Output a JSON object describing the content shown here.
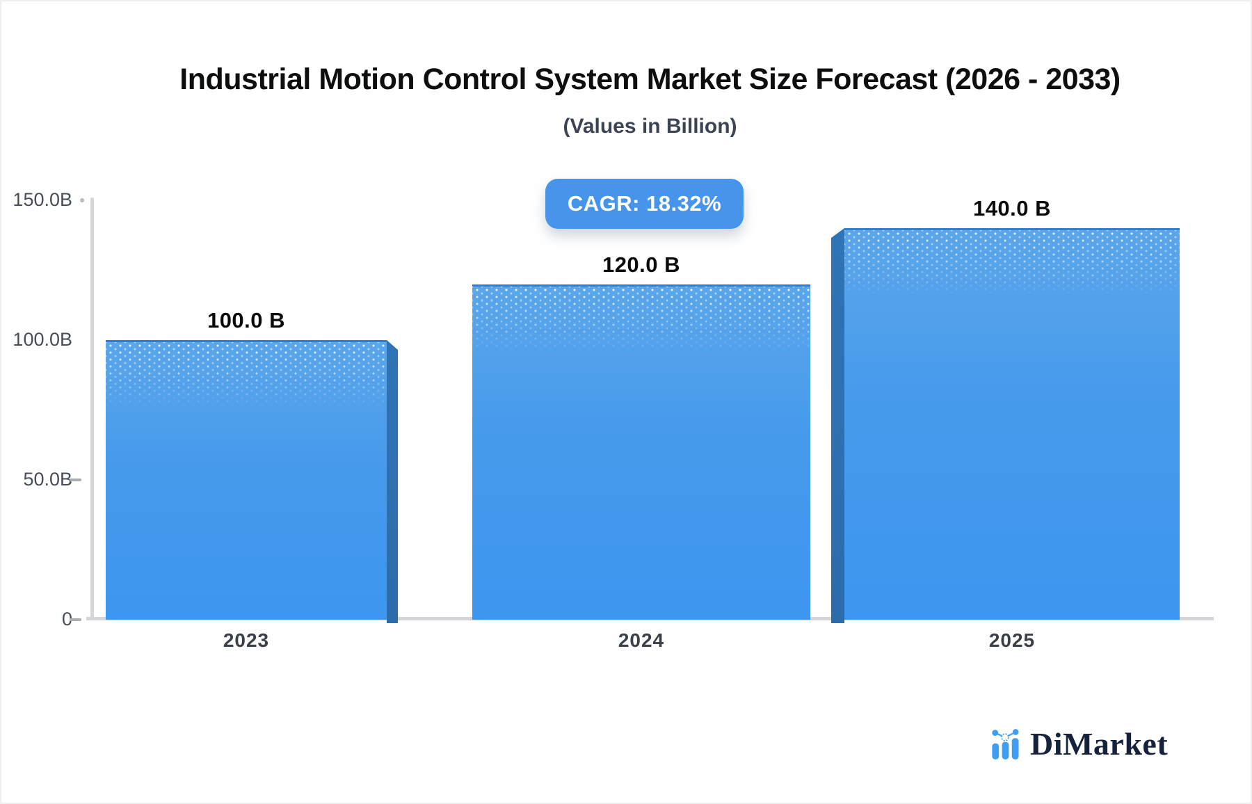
{
  "header": {
    "title": "Industrial Motion Control System Market Size Forecast (2026 - 2033)",
    "subtitle": "(Values in Billion)",
    "cagr_label": "CAGR: 18.32%"
  },
  "branding": {
    "name": "DiMarket",
    "icon": "bar-line-chart-logo-icon",
    "text_color": "#16213c",
    "icon_color": "#3f9df3"
  },
  "colors": {
    "bar_top": "#5ba6ea",
    "bar_bottom": "#3d96ef",
    "bar_side_3d": "#2e70b2",
    "badge_blue": "#4795eb",
    "axis_gray": "#d4d5d9",
    "label_dark": "#394048"
  },
  "chart_data": {
    "type": "bar",
    "categories": [
      "2023",
      "2024",
      "2025"
    ],
    "values": [
      100.0,
      120.0,
      140.0
    ],
    "value_labels": [
      "100.0 B",
      "120.0 B",
      "140.0 B"
    ],
    "unit": "Billion",
    "cagr": "18.32%",
    "title": "Industrial Motion Control System Market Size Forecast (2026 - 2033)",
    "subtitle": "(Values in Billion)",
    "y_ticks": [
      "0",
      "50.0B",
      "100.0B",
      "150.0B"
    ],
    "y_tick_values": [
      0,
      50,
      100,
      150
    ],
    "ylim": [
      0,
      150
    ],
    "grid": false,
    "legend": "none",
    "style_3d_perspective": true
  }
}
